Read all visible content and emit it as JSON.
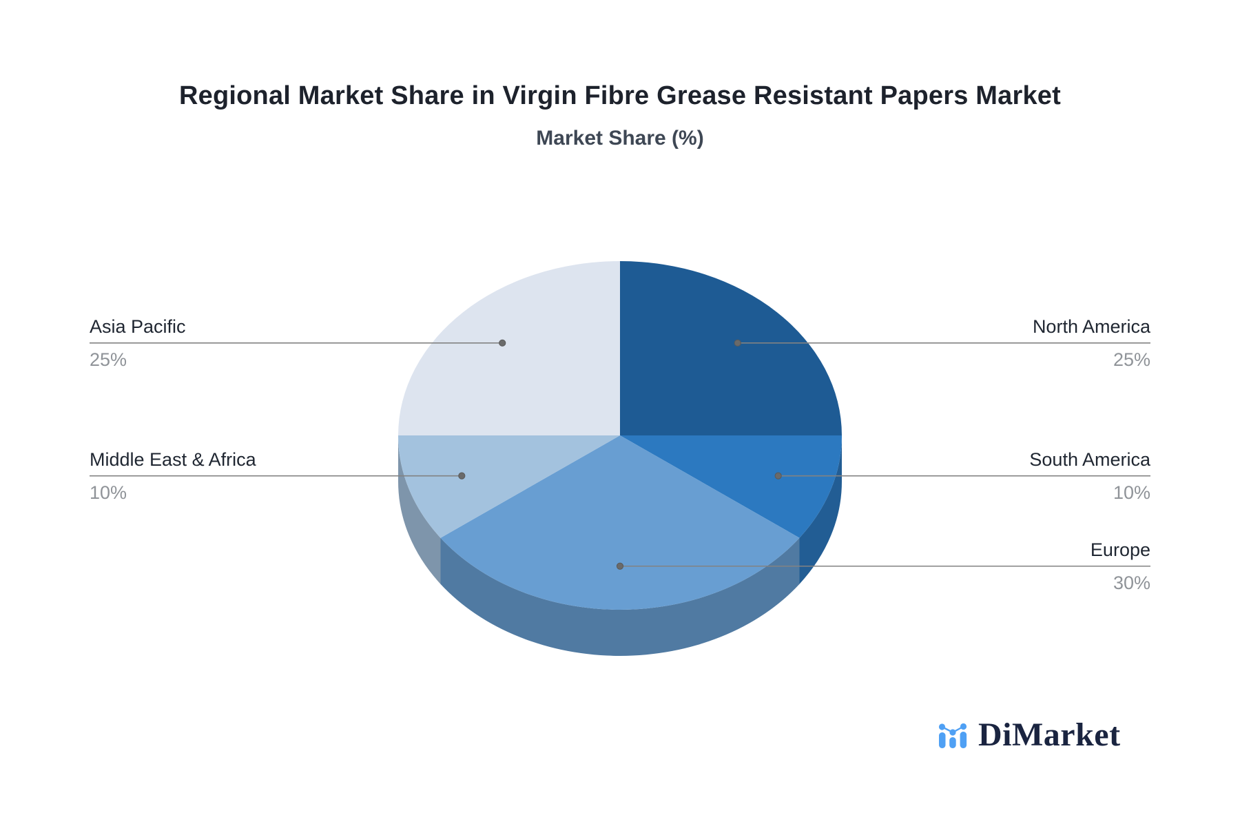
{
  "page": {
    "background": "#ffffff"
  },
  "chart_data": {
    "type": "pie",
    "style": "3d-pie",
    "title": "Regional Market Share in Virgin Fibre Grease Resistant Papers Market",
    "subtitle": "Market Share (%)",
    "unit": "%",
    "start_angle_deg": 0,
    "direction": "clockwise",
    "label_style": "callout-both-sides",
    "slices": [
      {
        "label": "North America",
        "value": 25,
        "display": "25%",
        "color": "#1e5b94"
      },
      {
        "label": "South America",
        "value": 10,
        "display": "10%",
        "color": "#2c79c0"
      },
      {
        "label": "Europe",
        "value": 30,
        "display": "30%",
        "color": "#689ed2"
      },
      {
        "label": "Middle East & Africa",
        "value": 10,
        "display": "10%",
        "color": "#a3c2de"
      },
      {
        "label": "Asia Pacific",
        "value": 25,
        "display": "25%",
        "color": "#dde4ef"
      }
    ]
  },
  "branding": {
    "logo_text": "DiMarket",
    "logo_text_color": "#1a2440",
    "icon_color": "#4fa0f4"
  },
  "colors": {
    "title": "#1d222c",
    "subtitle": "#3e4754",
    "label_text": "#1f2631",
    "value_text": "#8f9398",
    "leader_line": "#828282",
    "dot": "#6a6a6a"
  }
}
